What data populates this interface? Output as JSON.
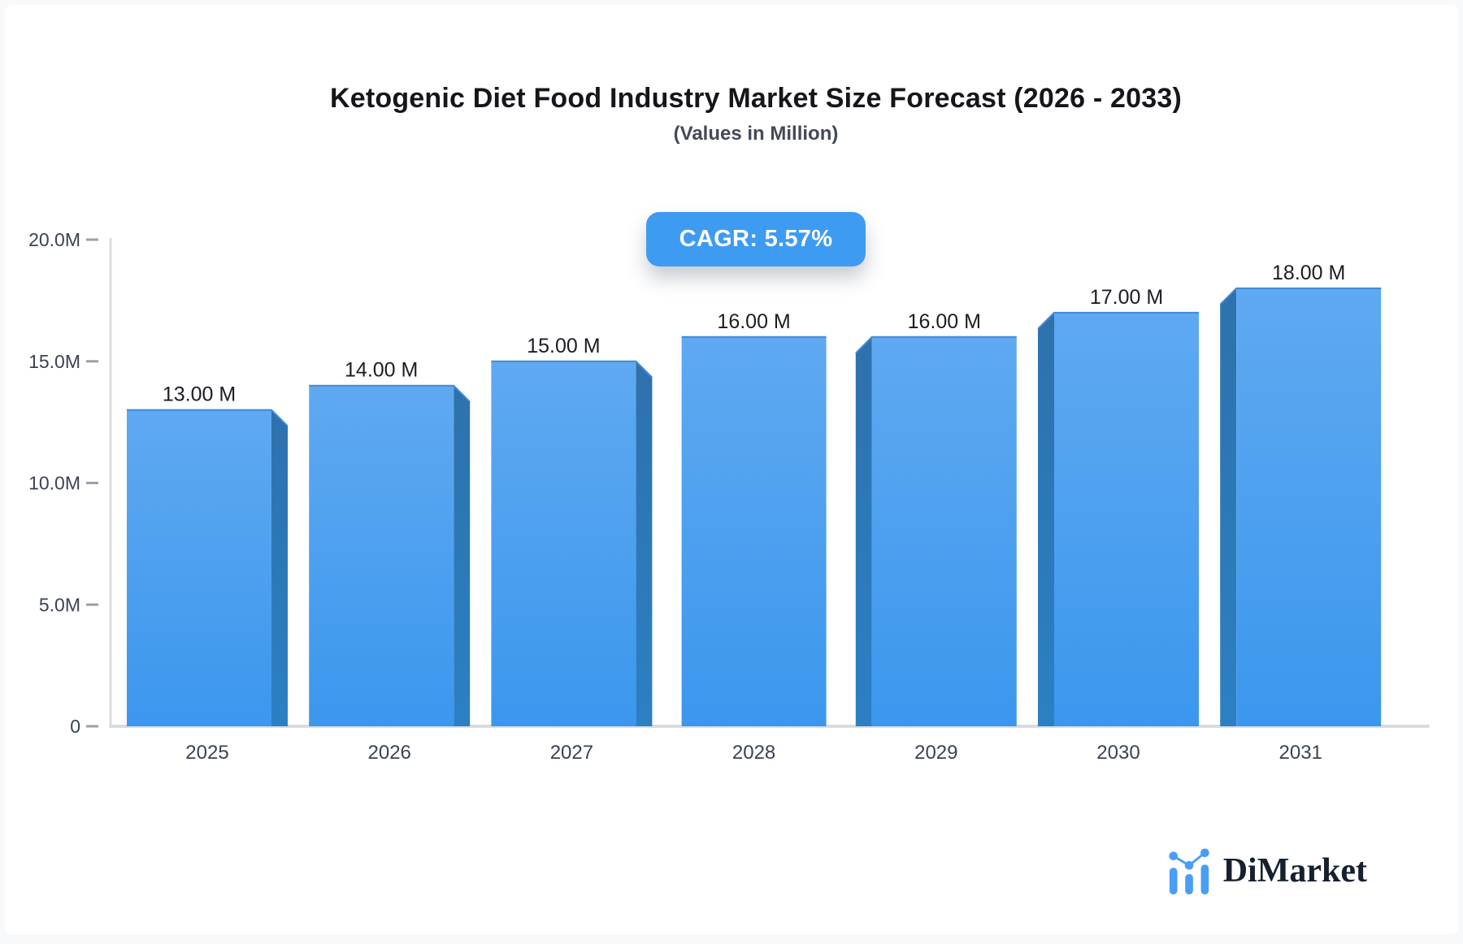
{
  "page": {
    "background": "#f7f9fb",
    "card_background": "#ffffff"
  },
  "header": {
    "title": "Ketogenic Diet Food Industry Market Size Forecast (2026 - 2033)",
    "subtitle": "(Values in Million)"
  },
  "badge": {
    "label": "CAGR: 5.57%",
    "background": "#3e9bf2",
    "text_color": "#ffffff"
  },
  "chart_data": {
    "type": "bar",
    "title": "Ketogenic Diet Food Industry Market Size Forecast (2026 - 2033)",
    "subtitle": "(Values in Million)",
    "unit": "Million",
    "cagr_label": "CAGR: 5.57%",
    "categories": [
      "2025",
      "2026",
      "2027",
      "2028",
      "2029",
      "2030",
      "2031"
    ],
    "values": [
      13,
      14,
      15,
      16,
      16,
      17,
      18
    ],
    "bar_labels": [
      "13.00 M",
      "14.00 M",
      "15.00 M",
      "16.00 M",
      "16.00 M",
      "17.00 M",
      "18.00 M"
    ],
    "xlabel": "",
    "ylabel": "",
    "ylim": [
      0,
      20
    ],
    "yticks": {
      "values": [
        0,
        5,
        10,
        15,
        20
      ],
      "labels": [
        "0",
        "5.0M",
        "10.0M",
        "15.0M",
        "20.0M"
      ]
    },
    "grid": false,
    "legend": "none",
    "bar_style": "3d-beveled",
    "colors": {
      "bar_face_top": "#5fa9f1",
      "bar_face_bottom": "#3b97ee",
      "bar_side_top": "#2e71ac",
      "bar_side_bottom": "#2b80c3",
      "bar_edge": "#4189d8",
      "axis_line": "#d8dce2",
      "tick_dash": "#99a1ad",
      "tick_label": "#3a4353",
      "category_label": "#3a4353",
      "value_label": "#1a1d24"
    }
  },
  "logo": {
    "text": "DiMarket",
    "icon_color": "#4a9df5",
    "text_color": "#16202f"
  }
}
